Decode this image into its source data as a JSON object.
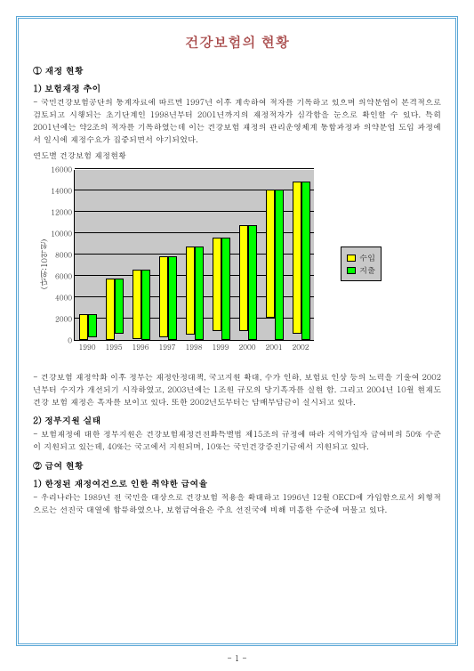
{
  "title": "건강보험의 현황",
  "section1": {
    "head": "① 재정 현황",
    "sub1": "1) 보험재정 추이",
    "p1": "- 국민건강보험공단의 통계자료에 따르면 1997년 이후 계속하여 적자를 기록하고 있으며 의약분업이 본격적으로 검토되고 시행되는 초기단계인 1998년부터 2001년까지의 재정적자가 심각함을 눈으로 확인할 수 있다. 특히 2001년에는 약2조의 적자를 기록하였는데 이는 건강보험 재정의 관리운영체계 통합과정과 의약분업 도입 과정에서 일시에 재정수요가 집중되면서 야기되었다.",
    "chartCaption": "연도별 건강보험 재정현황",
    "p2": "- 건강보험 재정악화 이후 정부는 재정안정대책, 국고지원 확대, 수가 인하, 보험료 인상 등의 노력을 기울여 2002년부터 수지가 개선되기 시작하였고, 2003년에는 1조원 규모의 당기흑자를 실현 함. 그리고 2004년 10월 현재도 건강 보험 재정은 흑자를 보이고 있다. 또한 2002년도부터는 담배부담금이 실시되고 있다.",
    "sub2": "2) 정부지원 실태",
    "p3": "- 보험재정에 대한 정부지원은 건강보험재정건전화특별법 제15조의 규정에 따라 지역가입자 급여비의 50% 수준이 지원되고 있는데, 40%는 국고에서 지원되며, 10%는 국민건강증진기금에서 지원되고 있다."
  },
  "section2": {
    "head": "② 급여 현황",
    "sub1": "1) 한정된 재정여건으로 인한 취약한 급여율",
    "p1": "- 우리나라는 1989년 전 국민을 대상으로 건강보험 적용을 확대하고 1996년 12월 OECD에 가입함으로서 외형적으로는 선진국 대열에 합류하였으나, 보험급여율은 주요 선진국에 비해 미흡한 수준에 머물고 있다."
  },
  "chart": {
    "type": "bar",
    "yLabel": "(단위:10억원)",
    "yMax": 16000,
    "yTicks": [
      0,
      2000,
      4000,
      6000,
      8000,
      10000,
      12000,
      14000,
      16000
    ],
    "categories": [
      "1990",
      "1995",
      "1996",
      "1997",
      "1998",
      "1999",
      "2000",
      "2001",
      "2002"
    ],
    "series": [
      {
        "name": "수입",
        "color": "#ffff00",
        "values": [
          2400,
          5700,
          6500,
          7600,
          8200,
          8800,
          9900,
          12000,
          14200
        ]
      },
      {
        "name": "지출",
        "color": "#00ff00",
        "values": [
          2200,
          5100,
          6600,
          7800,
          8700,
          9600,
          10700,
          14100,
          14800
        ]
      }
    ],
    "background": "#c8c8c8",
    "gridColor": "#000000"
  },
  "pageNum": "- 1 -"
}
